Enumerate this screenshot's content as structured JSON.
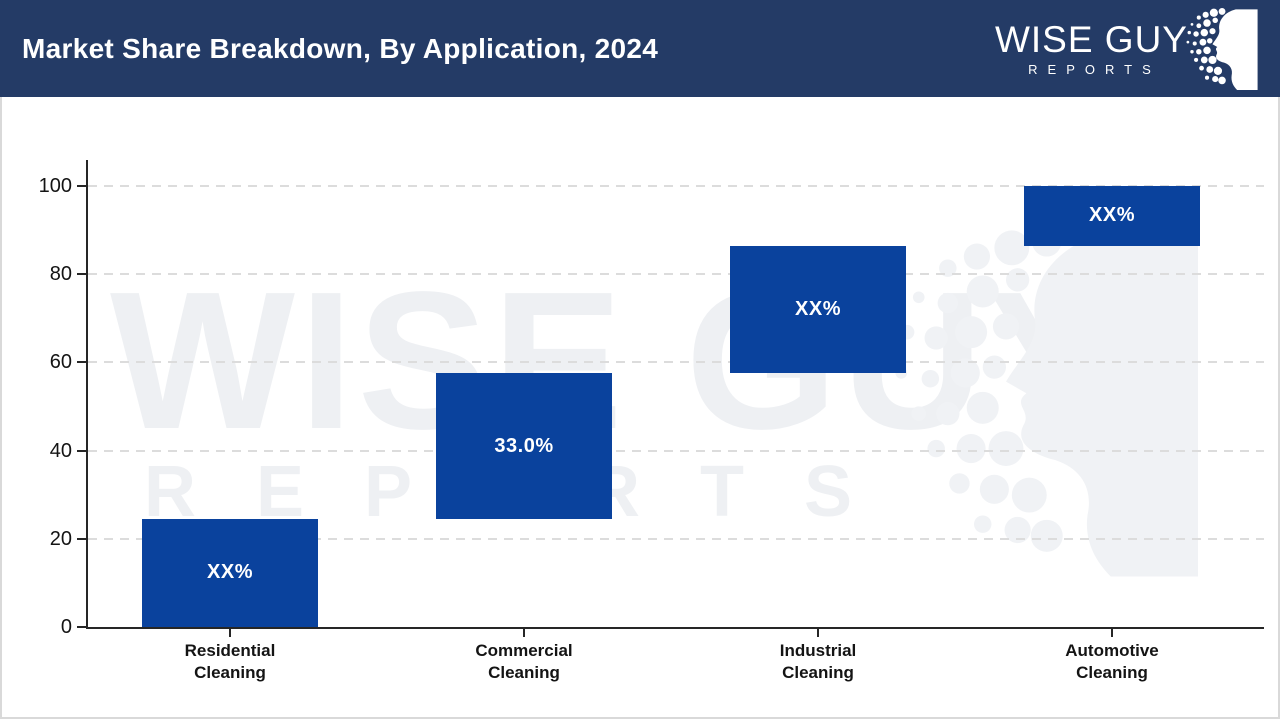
{
  "header": {
    "title": "Market Share Breakdown, By Application, 2024",
    "logo": {
      "primary": "WISE GUY",
      "secondary": "REPORTS"
    }
  },
  "watermark": {
    "primary": "WISE GUY",
    "secondary": "REPORTS"
  },
  "colors": {
    "header_bg": "#243b66",
    "bar": "#0a429d",
    "bar_label": "#ffffff",
    "grid": "#dcdcdc",
    "axis": "#262626",
    "watermark": "#eef0f3",
    "page_border": "#d9d9d9"
  },
  "chart_data": {
    "type": "bar",
    "subtype": "waterfall",
    "title": "Market Share Breakdown, By Application, 2024",
    "categories": [
      [
        "Residential",
        "Cleaning"
      ],
      [
        "Commercial",
        "Cleaning"
      ],
      [
        "Industrial",
        "Cleaning"
      ],
      [
        "Automotive",
        "Cleaning"
      ]
    ],
    "series": [
      {
        "name": "Market Share",
        "segments": [
          {
            "start": 0,
            "end": 24.5,
            "label": "XX%"
          },
          {
            "start": 24.5,
            "end": 57.5,
            "label": "33.0%"
          },
          {
            "start": 57.5,
            "end": 86.5,
            "label": "XX%"
          },
          {
            "start": 86.5,
            "end": 100,
            "label": "XX%"
          }
        ]
      }
    ],
    "xlabel": "",
    "ylabel": "",
    "yticks": [
      0,
      20,
      40,
      60,
      80,
      100
    ],
    "ylim": [
      0,
      105
    ],
    "grid": "horizontal-dashed",
    "legend": "none"
  }
}
